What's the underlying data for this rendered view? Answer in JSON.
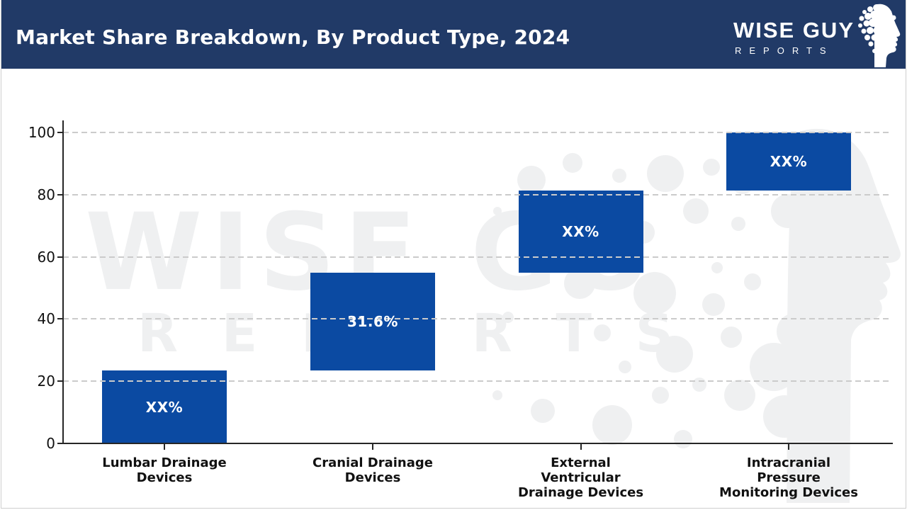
{
  "header": {
    "title": "Market Share Breakdown, By Product Type, 2024",
    "logo": {
      "wordmark": "WISE GUY",
      "subtext": "REPORTS"
    }
  },
  "watermark": {
    "line1": "WISE GU",
    "line2": "R E P O R T S"
  },
  "chart_data": {
    "type": "bar",
    "subtype": "waterfall-floating-bars",
    "title": "Market Share Breakdown, By Product Type, 2024",
    "xlabel": "",
    "ylabel": "",
    "ylim": [
      0,
      100
    ],
    "yticks": [
      0,
      20,
      40,
      60,
      80,
      100
    ],
    "grid": "horizontal-dashed",
    "legend": false,
    "categories": [
      "Lumbar Drainage Devices",
      "Cranial Drainage Devices",
      "External Ventricular Drainage Devices",
      "Intracranial Pressure Monitoring Devices"
    ],
    "segments": [
      {
        "category_lines": [
          "Lumbar Drainage",
          "Devices"
        ],
        "start": 0,
        "end": 23.4,
        "label": "XX%"
      },
      {
        "category_lines": [
          "Cranial Drainage",
          "Devices"
        ],
        "start": 23.4,
        "end": 55.0,
        "label": "31.6%"
      },
      {
        "category_lines": [
          "External",
          "Ventricular",
          "Drainage Devices"
        ],
        "start": 55.0,
        "end": 81.4,
        "label": "XX%"
      },
      {
        "category_lines": [
          "Intracranial",
          "Pressure",
          "Monitoring Devices"
        ],
        "start": 81.4,
        "end": 100,
        "label": "XX%"
      }
    ]
  },
  "colors": {
    "header_bg": "#213a67",
    "bar": "#0b4aa2",
    "grid": "#cbcbcb",
    "axis": "#262626",
    "text": "#111111",
    "watermark": "#eff0f1"
  }
}
